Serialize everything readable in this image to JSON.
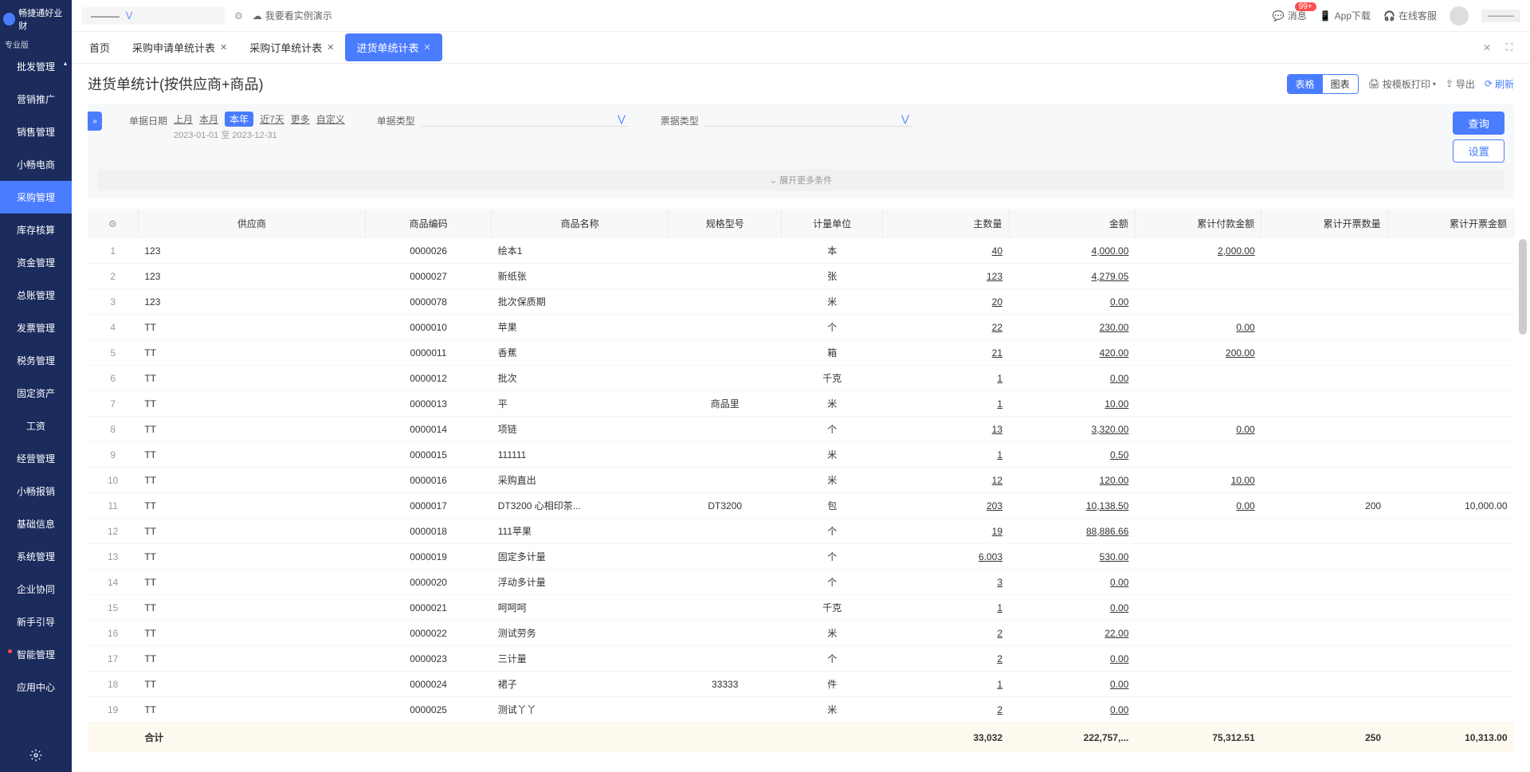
{
  "brand": {
    "name": "畅捷通好业财",
    "edition": "专业版"
  },
  "sidebar": {
    "items": [
      {
        "label": "批发管理",
        "arrow": true
      },
      {
        "label": "营销推广"
      },
      {
        "label": "销售管理"
      },
      {
        "label": "小畅电商"
      },
      {
        "label": "采购管理",
        "active": true
      },
      {
        "label": "库存核算"
      },
      {
        "label": "资金管理"
      },
      {
        "label": "总账管理"
      },
      {
        "label": "发票管理"
      },
      {
        "label": "税务管理"
      },
      {
        "label": "固定资产"
      },
      {
        "label": "工资"
      },
      {
        "label": "经营管理"
      },
      {
        "label": "小畅报销"
      },
      {
        "label": "基础信息"
      },
      {
        "label": "系统管理"
      },
      {
        "label": "企业协同"
      },
      {
        "label": "新手引导"
      },
      {
        "label": "智能管理",
        "newdot": true
      },
      {
        "label": "应用中心"
      }
    ]
  },
  "topbar": {
    "org": "———",
    "demo": "我要看实例演示",
    "msg": "消息",
    "msg_badge": "99+",
    "download": "App下载",
    "service": "在线客服",
    "user": "———"
  },
  "tabs": [
    {
      "label": "首页",
      "closable": false
    },
    {
      "label": "采购申请单统计表",
      "closable": true
    },
    {
      "label": "采购订单统计表",
      "closable": true
    },
    {
      "label": "进货单统计表",
      "closable": true,
      "active": true
    }
  ],
  "page": {
    "title": "进货单统计(按供应商+商品)",
    "view_table": "表格",
    "view_chart": "图表",
    "print": "按模板打印",
    "export": "导出",
    "refresh": "刷新"
  },
  "filter": {
    "date_label": "单据日期",
    "date_opts": [
      "上月",
      "本月",
      "本年",
      "近7天",
      "更多",
      "自定义"
    ],
    "date_active": "本年",
    "date_range": "2023-01-01 至 2023-12-31",
    "doc_type_label": "单据类型",
    "invoice_type_label": "票据类型",
    "query": "查询",
    "settings": "设置",
    "expand": "展开更多条件"
  },
  "table": {
    "headers": [
      "供应商",
      "商品编码",
      "商品名称",
      "规格型号",
      "计量单位",
      "主数量",
      "金额",
      "累计付款金额",
      "累计开票数量",
      "累计开票金额"
    ],
    "rows": [
      {
        "idx": 1,
        "supplier": "123",
        "code": "0000026",
        "name": "绘本1",
        "spec": "",
        "unit": "本",
        "qty": "40",
        "amount": "4,000.00",
        "paid": "2,000.00",
        "inv_qty": "",
        "inv_amt": ""
      },
      {
        "idx": 2,
        "supplier": "123",
        "code": "0000027",
        "name": "新纸张",
        "spec": "",
        "unit": "张",
        "qty": "123",
        "amount": "4,279.05",
        "paid": "",
        "inv_qty": "",
        "inv_amt": ""
      },
      {
        "idx": 3,
        "supplier": "123",
        "code": "0000078",
        "name": "批次保质期",
        "spec": "",
        "unit": "米",
        "qty": "20",
        "amount": "0.00",
        "paid": "",
        "inv_qty": "",
        "inv_amt": ""
      },
      {
        "idx": 4,
        "supplier": "TT",
        "code": "0000010",
        "name": "苹果",
        "spec": "",
        "unit": "个",
        "qty": "22",
        "amount": "230.00",
        "paid": "0.00",
        "inv_qty": "",
        "inv_amt": ""
      },
      {
        "idx": 5,
        "supplier": "TT",
        "code": "0000011",
        "name": "香蕉",
        "spec": "",
        "unit": "箱",
        "qty": "21",
        "amount": "420.00",
        "paid": "200.00",
        "inv_qty": "",
        "inv_amt": ""
      },
      {
        "idx": 6,
        "supplier": "TT",
        "code": "0000012",
        "name": "批次",
        "spec": "",
        "unit": "千克",
        "qty": "1",
        "amount": "0.00",
        "paid": "",
        "inv_qty": "",
        "inv_amt": ""
      },
      {
        "idx": 7,
        "supplier": "TT",
        "code": "0000013",
        "name": "平",
        "spec": "商品里",
        "unit": "米",
        "qty": "1",
        "amount": "10.00",
        "paid": "",
        "inv_qty": "",
        "inv_amt": ""
      },
      {
        "idx": 8,
        "supplier": "TT",
        "code": "0000014",
        "name": "项链",
        "spec": "",
        "unit": "个",
        "qty": "13",
        "amount": "3,320.00",
        "paid": "0.00",
        "inv_qty": "",
        "inv_amt": ""
      },
      {
        "idx": 9,
        "supplier": "TT",
        "code": "0000015",
        "name": "111111",
        "spec": "",
        "unit": "米",
        "qty": "1",
        "amount": "0.50",
        "paid": "",
        "inv_qty": "",
        "inv_amt": ""
      },
      {
        "idx": 10,
        "supplier": "TT",
        "code": "0000016",
        "name": "采购直出",
        "spec": "",
        "unit": "米",
        "qty": "12",
        "amount": "120.00",
        "paid": "10.00",
        "inv_qty": "",
        "inv_amt": ""
      },
      {
        "idx": 11,
        "supplier": "TT",
        "code": "0000017",
        "name": "DT3200 心相印茶...",
        "spec": "DT3200",
        "unit": "包",
        "qty": "203",
        "amount": "10,138.50",
        "paid": "0.00",
        "inv_qty": "200",
        "inv_amt": "10,000.00"
      },
      {
        "idx": 12,
        "supplier": "TT",
        "code": "0000018",
        "name": "111苹果",
        "spec": "",
        "unit": "个",
        "qty": "19",
        "amount": "88,886.66",
        "paid": "",
        "inv_qty": "",
        "inv_amt": ""
      },
      {
        "idx": 13,
        "supplier": "TT",
        "code": "0000019",
        "name": "固定多计量",
        "spec": "",
        "unit": "个",
        "qty": "6.003",
        "amount": "530.00",
        "paid": "",
        "inv_qty": "",
        "inv_amt": ""
      },
      {
        "idx": 14,
        "supplier": "TT",
        "code": "0000020",
        "name": "浮动多计量",
        "spec": "",
        "unit": "个",
        "qty": "3",
        "amount": "0.00",
        "paid": "",
        "inv_qty": "",
        "inv_amt": ""
      },
      {
        "idx": 15,
        "supplier": "TT",
        "code": "0000021",
        "name": "呵呵呵",
        "spec": "",
        "unit": "千克",
        "qty": "1",
        "amount": "0.00",
        "paid": "",
        "inv_qty": "",
        "inv_amt": ""
      },
      {
        "idx": 16,
        "supplier": "TT",
        "code": "0000022",
        "name": "测试劳务",
        "spec": "",
        "unit": "米",
        "qty": "2",
        "amount": "22.00",
        "paid": "",
        "inv_qty": "",
        "inv_amt": ""
      },
      {
        "idx": 17,
        "supplier": "TT",
        "code": "0000023",
        "name": "三计量",
        "spec": "",
        "unit": "个",
        "qty": "2",
        "amount": "0.00",
        "paid": "",
        "inv_qty": "",
        "inv_amt": ""
      },
      {
        "idx": 18,
        "supplier": "TT",
        "code": "0000024",
        "name": "裙子",
        "spec": "33333",
        "unit": "件",
        "qty": "1",
        "amount": "0.00",
        "paid": "",
        "inv_qty": "",
        "inv_amt": ""
      },
      {
        "idx": 19,
        "supplier": "TT",
        "code": "0000025",
        "name": "测试丫丫",
        "spec": "",
        "unit": "米",
        "qty": "2",
        "amount": "0.00",
        "paid": "",
        "inv_qty": "",
        "inv_amt": ""
      }
    ],
    "total_label": "合计",
    "totals": {
      "qty": "33,032",
      "amount": "222,757,...",
      "paid": "75,312.51",
      "inv_qty": "250",
      "inv_amt": "10,313.00"
    }
  },
  "colors": {
    "primary": "#4a7cff",
    "sidebar_bg": "#1a2b5c",
    "danger": "#ff4d4f",
    "totals_bg": "#fefaf0"
  }
}
